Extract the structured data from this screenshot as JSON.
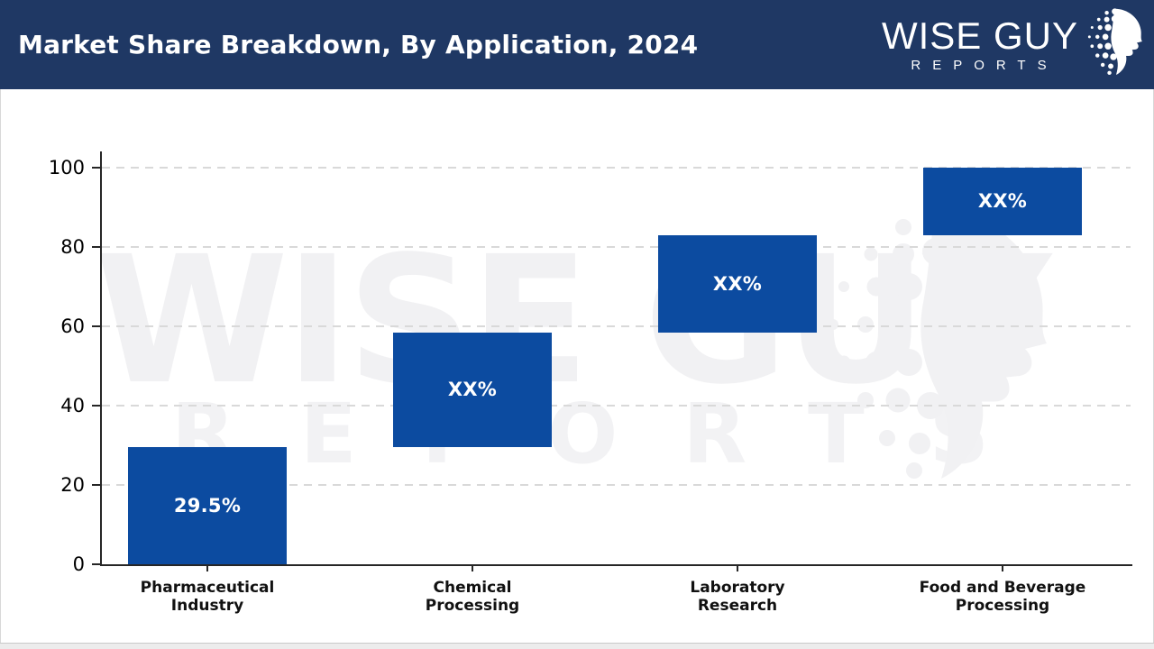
{
  "header": {
    "title": "Market Share Breakdown, By Application, 2024",
    "logo": {
      "line1": "WISE GUY",
      "line2": "REPORTS"
    }
  },
  "watermark": {
    "line1": "WISE GUY",
    "line2": "REPORTS"
  },
  "colors": {
    "header_bg": "#1f3864",
    "bar": "#0c4ba0",
    "grid": "#d9d9d9",
    "axis": "#262626",
    "watermark": "#f1f1f3",
    "bar_label": "#ffffff",
    "tick_text": "#000000"
  },
  "chart_data": {
    "type": "bar",
    "subtype": "stacked-waterfall",
    "title": "Market Share Breakdown, By Application, 2024",
    "categories": [
      [
        "Pharmaceutical",
        "Industry"
      ],
      [
        "Chemical",
        "Processing"
      ],
      [
        "Laboratory",
        "Research"
      ],
      [
        "Food and Beverage",
        "Processing"
      ]
    ],
    "segments": [
      {
        "label": "29.5%",
        "start": 0,
        "end": 29.5
      },
      {
        "label": "XX%",
        "start": 29.5,
        "end": 58.5
      },
      {
        "label": "XX%",
        "start": 58.5,
        "end": 83
      },
      {
        "label": "XX%",
        "start": 83,
        "end": 100
      }
    ],
    "xlabel": "",
    "ylabel": "",
    "ylim": [
      0,
      100
    ],
    "yticks": [
      0,
      20,
      40,
      60,
      80,
      100
    ],
    "grid": "horizontal-dashed",
    "legend": "none"
  }
}
